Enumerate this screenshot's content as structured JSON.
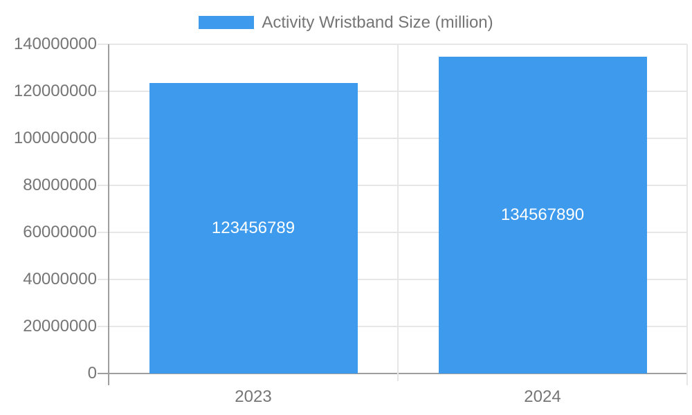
{
  "chart_data": {
    "type": "bar",
    "title": "Activity Wristband Size (million)",
    "categories": [
      "2023",
      "2024"
    ],
    "series": [
      {
        "name": "Activity Wristband Size (million)",
        "values": [
          123456789,
          134567890
        ]
      }
    ],
    "data_labels": [
      "123456789",
      "134567890"
    ],
    "xlabel": "",
    "ylabel": "",
    "ylim": [
      0,
      140000000
    ],
    "ytick_step": 20000000,
    "ytick_labels": [
      "0",
      "20000000",
      "40000000",
      "60000000",
      "80000000",
      "100000000",
      "120000000",
      "140000000"
    ],
    "grid": true,
    "legend_position": "top",
    "colors": {
      "bar": "#3D9AEC",
      "axis_line": "#9E9E9E",
      "gridline": "#E6E6E6",
      "tick_text": "#757575",
      "bar_label_text": "#ffffff",
      "background": "#ffffff"
    }
  }
}
